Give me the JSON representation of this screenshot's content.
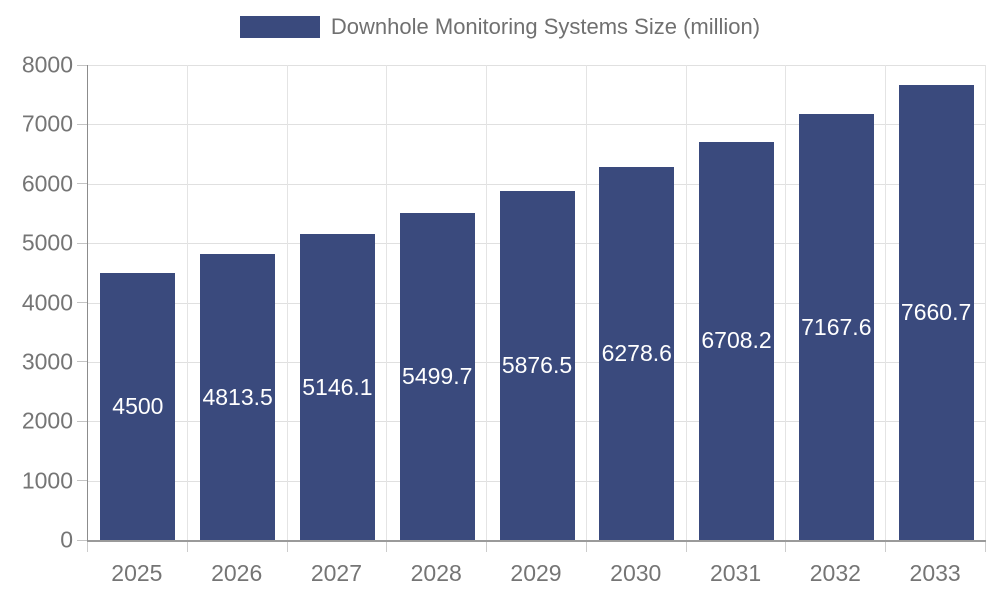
{
  "legend": {
    "label": "Downhole Monitoring Systems Size (million)"
  },
  "chart_data": {
    "type": "bar",
    "title": "Downhole Monitoring Systems Size (million)",
    "categories": [
      "2025",
      "2026",
      "2027",
      "2028",
      "2029",
      "2030",
      "2031",
      "2032",
      "2033"
    ],
    "values": [
      4500,
      4813.5,
      5146.1,
      5499.7,
      5876.5,
      6278.6,
      6708.2,
      7167.6,
      7660.7
    ],
    "value_labels": [
      "4500",
      "4813.5",
      "5146.1",
      "5499.7",
      "5876.5",
      "6278.6",
      "6708.2",
      "7167.6",
      "7660.7"
    ],
    "xlabel": "",
    "ylabel": "",
    "ylim": [
      0,
      8000
    ],
    "yticks": [
      0,
      1000,
      2000,
      3000,
      4000,
      5000,
      6000,
      7000,
      8000
    ],
    "grid": true,
    "legend_position": "top",
    "bar_color": "#3A4A7D",
    "value_label_color": "#ffffff"
  },
  "colors": {
    "bar": "#3A4A7D",
    "gridline": "#e0e0e0",
    "axis_line": "#9a9a9a",
    "tick_text": "#757575",
    "legend_text": "#707070",
    "background": "#ffffff"
  }
}
